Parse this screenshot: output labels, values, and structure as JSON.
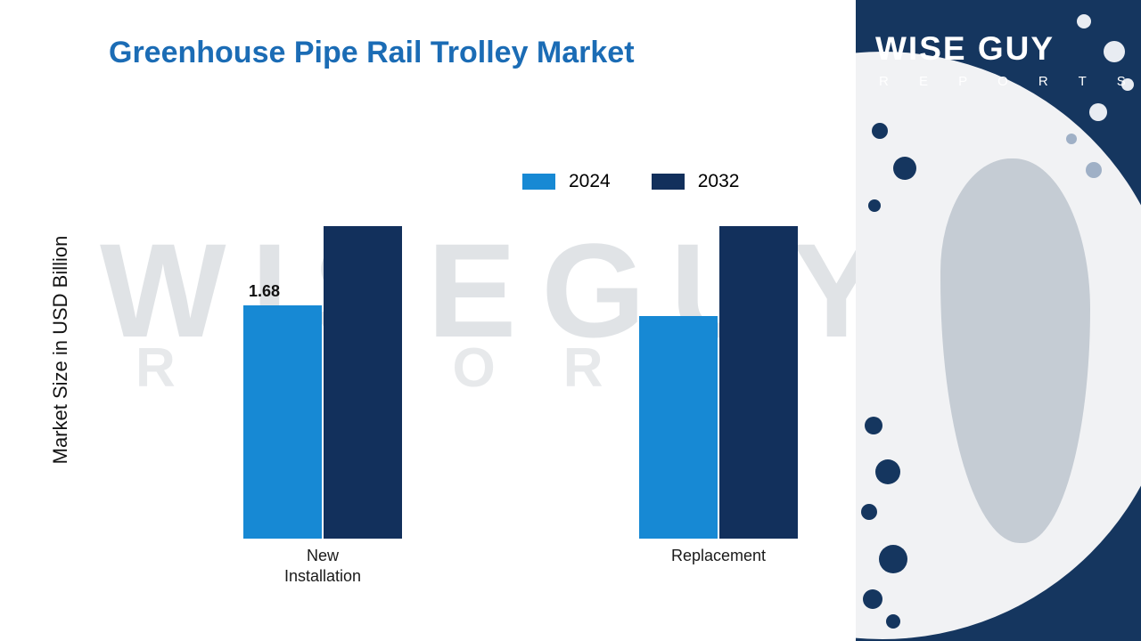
{
  "title": "Greenhouse Pipe Rail Trolley Market",
  "y_axis_label": "Market Size in USD Billion",
  "logo": {
    "line1": "WISE GUY",
    "line2": "R E P O R T S"
  },
  "watermark": {
    "line1": "WISEGUY",
    "line2": "REPORT"
  },
  "colors": {
    "title_blue": "#1b6cb5",
    "bar_blue": "#1789d4",
    "bar_navy": "#12305c",
    "panel_navy": "#15365f"
  },
  "chart_data": {
    "type": "bar",
    "title": "Greenhouse Pipe Rail Trolley Market",
    "ylabel": "Market Size in USD Billion",
    "categories": [
      "New Installation",
      "Replacement"
    ],
    "series": [
      {
        "name": "2024",
        "color": "#1789d4",
        "values": [
          1.68,
          1.6
        ]
      },
      {
        "name": "2032",
        "color": "#12305c",
        "values": [
          2.25,
          2.25
        ]
      }
    ],
    "value_labels": [
      {
        "2024": "1.68"
      },
      {}
    ],
    "ylim": [
      0,
      2.6
    ],
    "grid": false,
    "legend_position": "top"
  }
}
